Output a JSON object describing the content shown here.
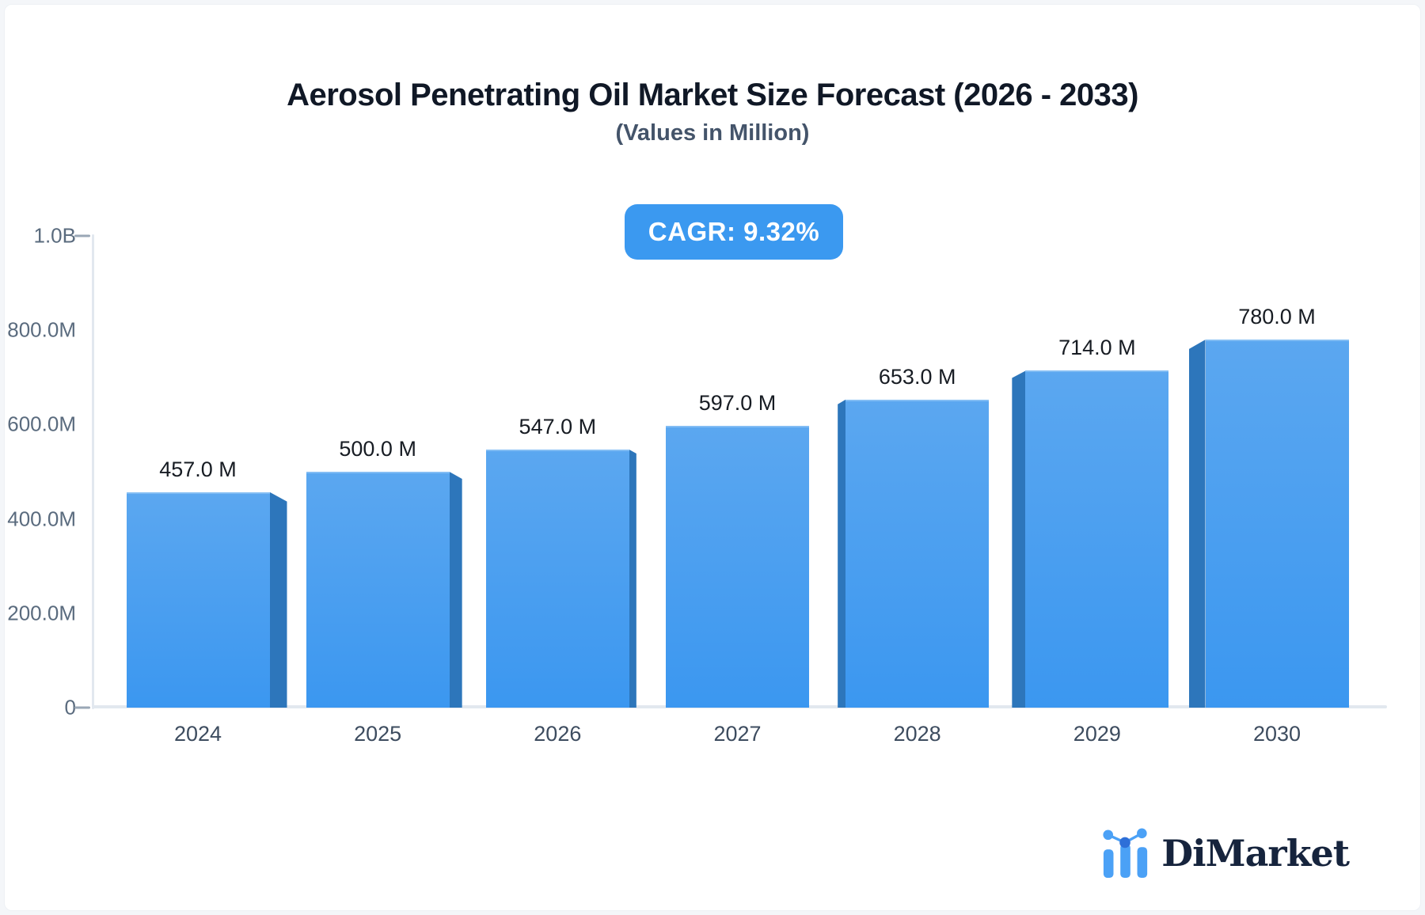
{
  "chart_data": {
    "type": "bar",
    "title": "Aerosol Penetrating Oil Market Size Forecast (2026 - 2033)",
    "subtitle": "(Values in Million)",
    "badge": "CAGR: 9.32%",
    "categories": [
      "2024",
      "2025",
      "2026",
      "2027",
      "2028",
      "2029",
      "2030"
    ],
    "values": [
      457,
      500,
      547,
      597,
      653,
      714,
      780
    ],
    "value_labels": [
      "457.0 M",
      "500.0 M",
      "547.0 M",
      "597.0 M",
      "653.0 M",
      "714.0 M",
      "780.0 M"
    ],
    "unit": "Million",
    "xlabel": "",
    "ylabel": "",
    "ylim": [
      0,
      1000
    ],
    "grid": false,
    "legend": false,
    "y_ticks": [
      {
        "label": "0",
        "value": 0,
        "dash": true
      },
      {
        "label": "200.0M",
        "value": 200,
        "dash": false
      },
      {
        "label": "400.0M",
        "value": 400,
        "dash": false
      },
      {
        "label": "600.0M",
        "value": 600,
        "dash": false
      },
      {
        "label": "800.0M",
        "value": 800,
        "dash": false
      },
      {
        "label": "1.0B",
        "value": 1000,
        "dash": true
      }
    ],
    "colors": {
      "bar_top": "#5ba7f0",
      "bar_bottom": "#3b97f0",
      "bar_side": "#2d76bb",
      "bar_highlight": "#82bdf4",
      "badge_bg": "#3b99f0",
      "axis_line": "#e2e8ef",
      "tick": "#9aa7b6",
      "y_label": "#5a6b7e",
      "x_label": "#3d4c5f",
      "value_label": "#171c23",
      "title": "#101826",
      "subtitle": "#44546a",
      "brand": "#16243d",
      "brand_icon_light": "#4ba1f6",
      "brand_icon_dark": "#2e6fd8"
    }
  },
  "brand": {
    "name": "DiMarket",
    "icon": "mini-bar-chart-icon"
  }
}
